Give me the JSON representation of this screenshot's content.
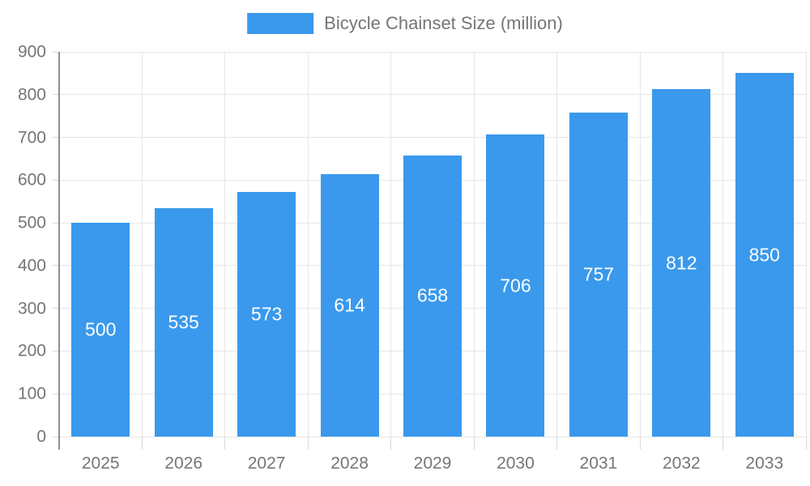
{
  "chart_data": {
    "type": "bar",
    "title": "Bicycle Chainset Size (million)",
    "categories": [
      "2025",
      "2026",
      "2027",
      "2028",
      "2029",
      "2030",
      "2031",
      "2032",
      "2033"
    ],
    "values": [
      500,
      535,
      573,
      614,
      658,
      706,
      757,
      812,
      850
    ],
    "xlabel": "",
    "ylabel": "",
    "ylim": [
      0,
      900
    ],
    "ytick_step": 100,
    "yticks": [
      0,
      100,
      200,
      300,
      400,
      500,
      600,
      700,
      800,
      900
    ],
    "grid": true,
    "legend_position": "top-center",
    "value_labels": "inside-center",
    "colors": {
      "bar": "#3A99EC",
      "grid": "#e6e6e6",
      "axis_line": "#8f8f8f",
      "tick": "#d9d9d9",
      "axis_text": "#757575",
      "value_label_text": "#ffffff",
      "background": "#ffffff"
    }
  }
}
